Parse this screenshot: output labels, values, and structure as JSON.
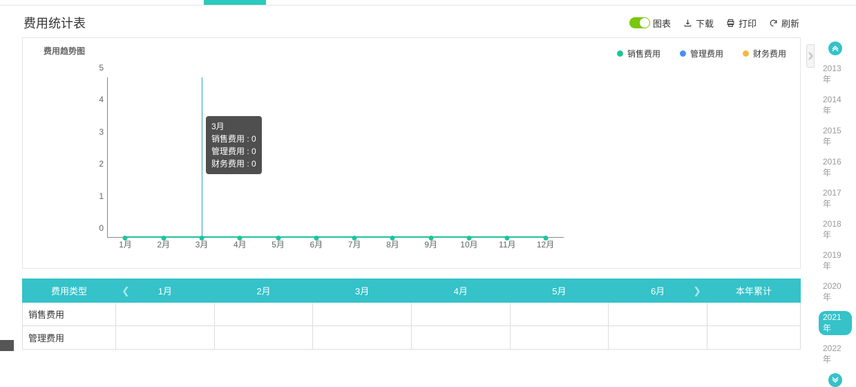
{
  "header": {
    "title": "费用统计表",
    "toggle_label": "图表",
    "toggle_on": true,
    "toggle_color": "#7ac70c",
    "download_label": "下载",
    "print_label": "打印",
    "refresh_label": "刷新"
  },
  "chart": {
    "title": "费用趋势图",
    "type": "line",
    "legend": [
      {
        "label": "销售费用",
        "color": "#1fc39a"
      },
      {
        "label": "管理费用",
        "color": "#4a8ef1"
      },
      {
        "label": "财务费用",
        "color": "#f6b83f"
      }
    ],
    "x_labels": [
      "1月",
      "2月",
      "3月",
      "4月",
      "5月",
      "6月",
      "7月",
      "8月",
      "9月",
      "10月",
      "11月",
      "12月"
    ],
    "y_ticks": [
      0,
      1,
      2,
      3,
      4,
      5
    ],
    "ylim": [
      0,
      5
    ],
    "series": [
      {
        "name": "销售费用",
        "color": "#1fc39a",
        "values": [
          0,
          0,
          0,
          0,
          0,
          0,
          0,
          0,
          0,
          0,
          0,
          0
        ]
      },
      {
        "name": "管理费用",
        "color": "#4a8ef1",
        "values": [
          0,
          0,
          0,
          0,
          0,
          0,
          0,
          0,
          0,
          0,
          0,
          0
        ]
      },
      {
        "name": "财务费用",
        "color": "#f6b83f",
        "values": [
          0,
          0,
          0,
          0,
          0,
          0,
          0,
          0,
          0,
          0,
          0,
          0
        ]
      }
    ],
    "point_marker_color": "#1fc39a",
    "line_color": "#1fc39a",
    "axis_color": "#888888",
    "crosshair_index": 2,
    "tooltip": {
      "title": "3月",
      "rows": [
        {
          "label": "销售费用",
          "value": "0"
        },
        {
          "label": "管理费用",
          "value": "0"
        },
        {
          "label": "财务费用",
          "value": "0"
        }
      ]
    }
  },
  "table": {
    "header_bg": "#35c2c9",
    "type_header": "费用类型",
    "month_headers": [
      "1月",
      "2月",
      "3月",
      "4月",
      "5月",
      "6月"
    ],
    "total_header": "本年累计",
    "rows": [
      {
        "label": "销售费用"
      },
      {
        "label": "管理费用"
      }
    ]
  },
  "year_rail": {
    "years": [
      "2013年",
      "2014年",
      "2015年",
      "2016年",
      "2017年",
      "2018年",
      "2019年",
      "2020年",
      "2021年",
      "2022年"
    ],
    "active": "2021年",
    "pill_color": "#35c2c9"
  }
}
